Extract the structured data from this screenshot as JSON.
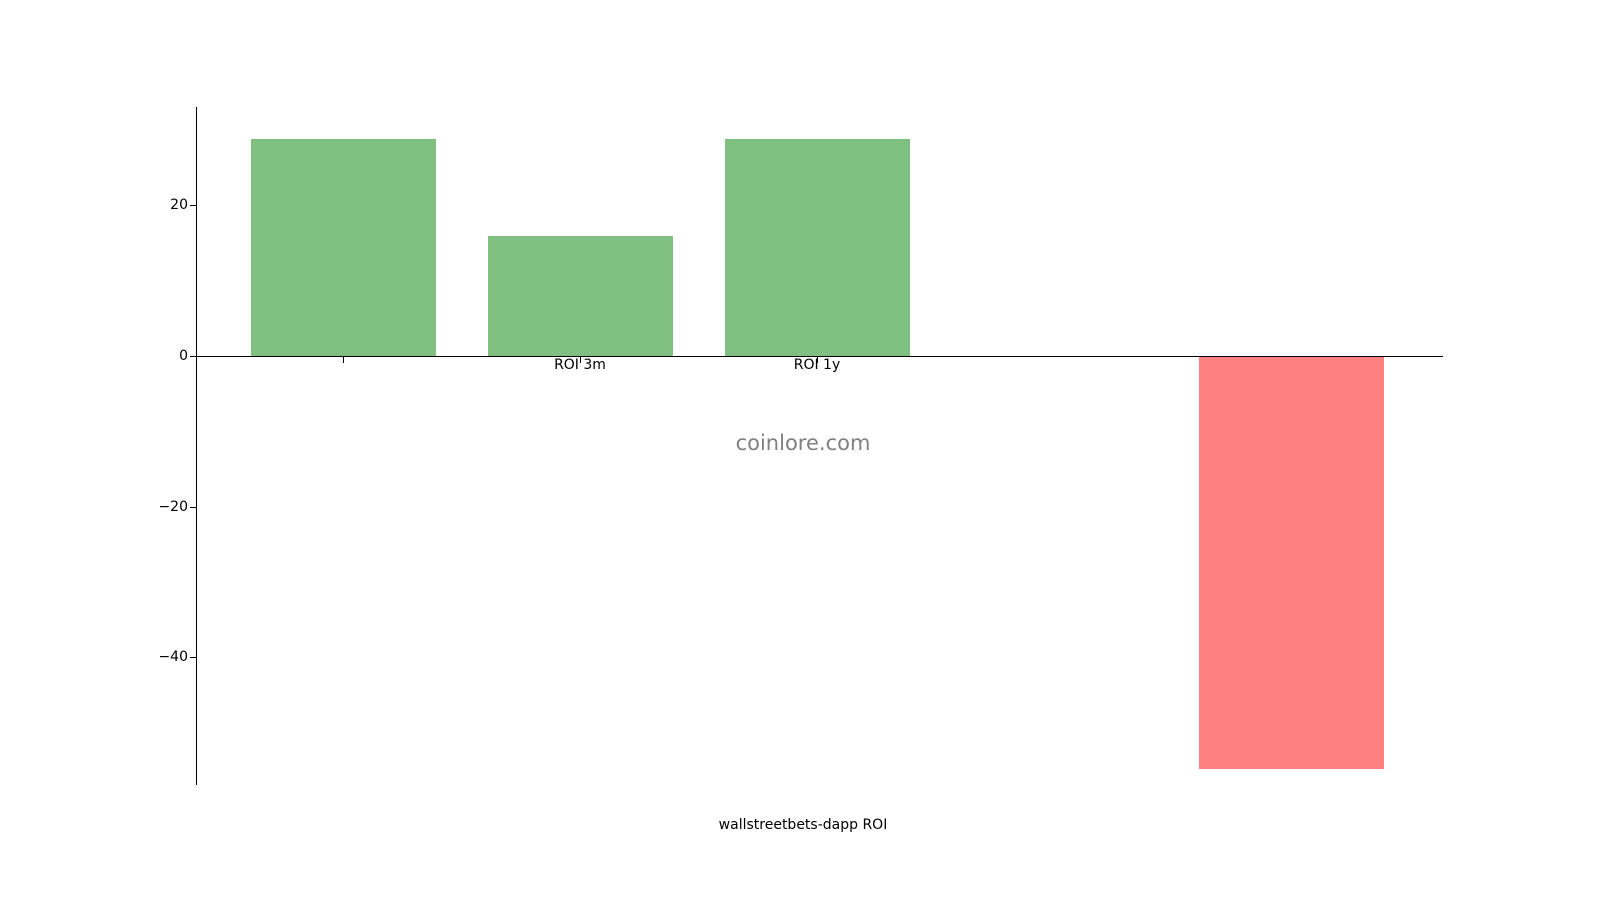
{
  "chart_data": {
    "type": "bar",
    "title": "wallstreetbets-dapp ROI",
    "watermark": "coinlore.com",
    "categories": [
      "",
      "ROI 3m",
      "ROI 1y",
      "",
      ""
    ],
    "values": [
      28.8,
      16,
      28.8,
      0,
      -54.7
    ],
    "bars": [
      {
        "index": 0,
        "label": "",
        "value": 28.8,
        "color": "#7fbf7f"
      },
      {
        "index": 1,
        "label": "ROI 3m",
        "value": 16,
        "color": "#7fbf7f"
      },
      {
        "index": 2,
        "label": "ROI 1y",
        "value": 28.8,
        "color": "#7fbf7f"
      },
      {
        "index": 4,
        "label": "",
        "value": -54.7,
        "color": "#ff8080"
      }
    ],
    "yticks": [
      {
        "value": 20,
        "label": "20"
      },
      {
        "value": 0,
        "label": "0"
      },
      {
        "value": -20,
        "label": "−20"
      },
      {
        "value": -40,
        "label": "−40"
      }
    ],
    "xticks": [
      {
        "index": 0,
        "label": ""
      },
      {
        "index": 1,
        "label": "ROI 3m"
      },
      {
        "index": 2,
        "label": "ROI 1y"
      }
    ],
    "ylim": [
      -57,
      33
    ],
    "xlabel": "",
    "ylabel": "",
    "grid": false,
    "legend": "none",
    "positive_color": "#7fbf7f",
    "negative_color": "#ff8080",
    "axis_color": "#000000",
    "text_color": "#000000",
    "watermark_color": "#808080",
    "background_color": "#ffffff"
  }
}
